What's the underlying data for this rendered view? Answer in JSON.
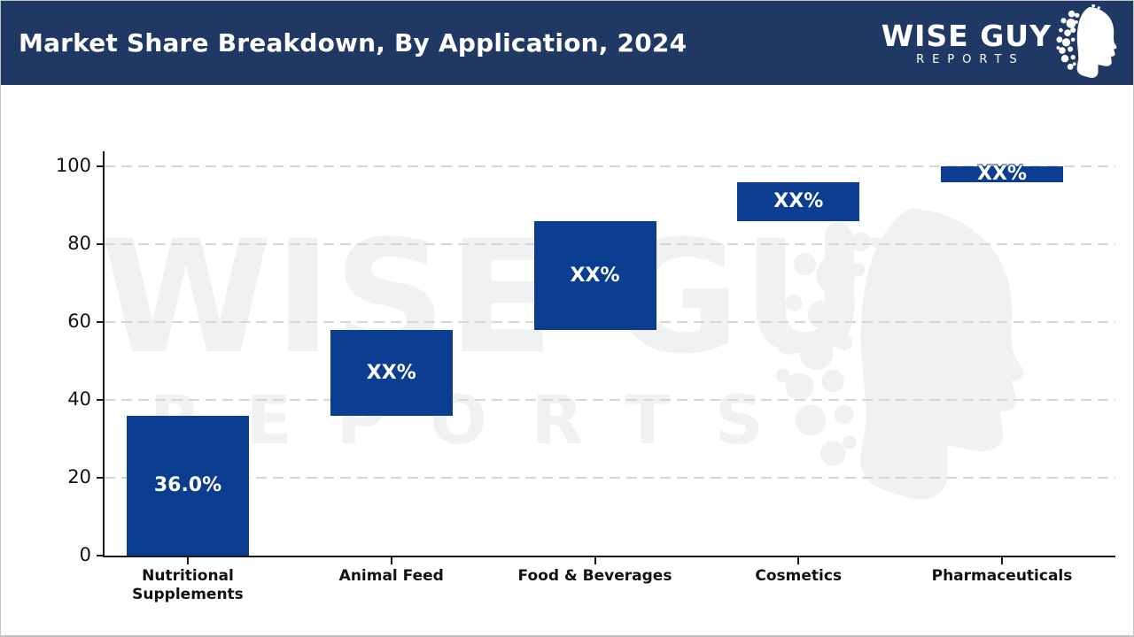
{
  "page": {
    "background": "#ffffff",
    "border_color": "#c6c6c6"
  },
  "header": {
    "title": "Market Share Breakdown, By Application, 2024",
    "background": "#1f3864",
    "logo": {
      "line1": "WISE GUY",
      "line2": "REPORTS"
    }
  },
  "watermark": {
    "line1": "WISE GUY",
    "line2": "REPORTS"
  },
  "chart_data": {
    "type": "bar",
    "subtype": "waterfall",
    "title": "Market Share Breakdown, By Application, 2024",
    "categories": [
      "Nutritional Supplements",
      "Animal Feed",
      "Food & Beverages",
      "Cosmetics",
      "Pharmaceuticals"
    ],
    "segments": [
      {
        "category": "Nutritional Supplements",
        "start": 0,
        "end": 36,
        "value": 36.0,
        "label": "36.0%"
      },
      {
        "category": "Animal Feed",
        "start": 36,
        "end": 58,
        "value": 22,
        "label": "XX%"
      },
      {
        "category": "Food & Beverages",
        "start": 58,
        "end": 86,
        "value": 28,
        "label": "XX%"
      },
      {
        "category": "Cosmetics",
        "start": 86,
        "end": 96,
        "value": 10,
        "label": "XX%"
      },
      {
        "category": "Pharmaceuticals",
        "start": 96,
        "end": 100,
        "value": 4,
        "label": "XX%"
      }
    ],
    "ylim": [
      0,
      100
    ],
    "yticks": [
      0,
      20,
      40,
      60,
      80,
      100
    ],
    "grid": "horizontal dashed",
    "legend": "none",
    "bar_color": "#0b3d91",
    "label_color": "#ffffff"
  }
}
